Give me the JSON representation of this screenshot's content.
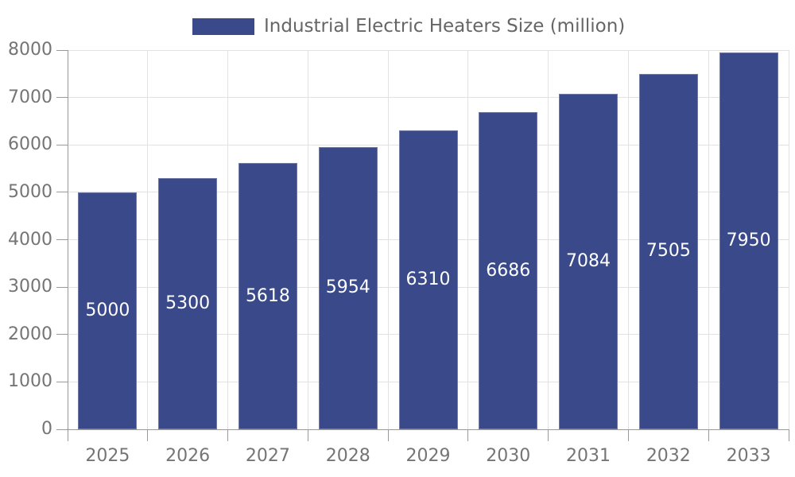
{
  "chart_data": {
    "type": "bar",
    "title": "",
    "legend": "Industrial Electric Heaters Size (million)",
    "legend_position": "top",
    "categories": [
      "2025",
      "2026",
      "2027",
      "2028",
      "2029",
      "2030",
      "2031",
      "2032",
      "2033"
    ],
    "series": [
      {
        "name": "Industrial Electric Heaters Size (million)",
        "values": [
          5000,
          5300,
          5618,
          5954,
          6310,
          6686,
          7084,
          7505,
          7950
        ]
      }
    ],
    "xlabel": "",
    "ylabel": "",
    "ylim": [
      0,
      8000
    ],
    "y_ticks": [
      0,
      1000,
      2000,
      3000,
      4000,
      5000,
      6000,
      7000,
      8000
    ],
    "grid": true,
    "bar_color": "#39498a",
    "bar_label_color": "#ffffff",
    "grid_color": "#e2e2e2",
    "axis_line_color": "#999999",
    "tick_label_color": "#757575",
    "legend_text_color": "#666666"
  }
}
